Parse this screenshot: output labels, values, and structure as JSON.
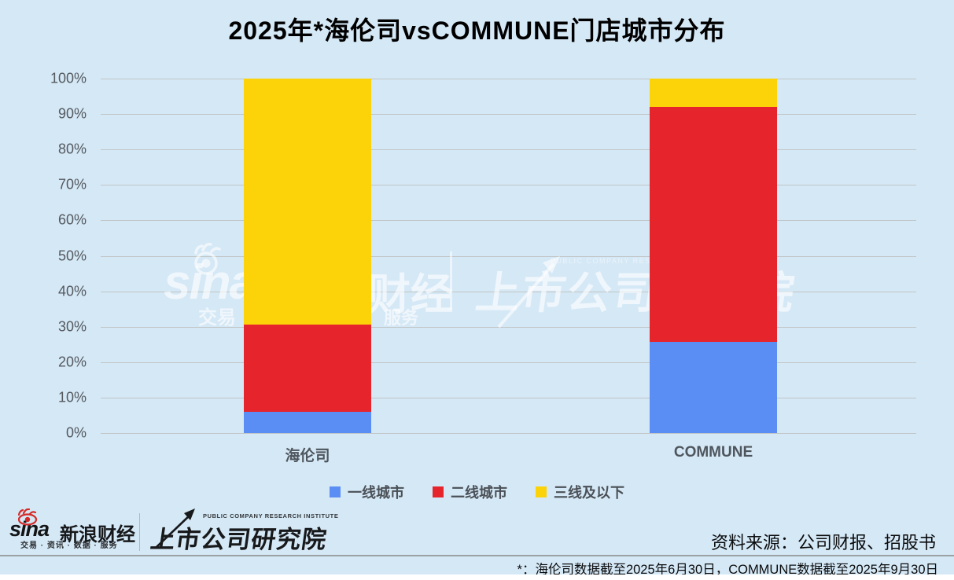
{
  "page": {
    "title": "2025年*海伦司vsCOMMUNE门店城市分布",
    "background_color": "#d5e8f6"
  },
  "chart_data": {
    "type": "bar",
    "stacked": true,
    "unit": "%",
    "title": "2025年*海伦司vsCOMMUNE门店城市分布",
    "categories": [
      "海伦司",
      "COMMUNE"
    ],
    "series": [
      {
        "name": "一线城市",
        "color": "#5b8ef4",
        "values": [
          6,
          25.8
        ]
      },
      {
        "name": "二线城市",
        "color": "#e6242c",
        "values": [
          24.5,
          66.2
        ]
      },
      {
        "name": "三线及以下",
        "color": "#fcd209",
        "values": [
          69.5,
          8
        ]
      }
    ],
    "ylim": [
      0,
      100
    ],
    "yticks": [
      "0%",
      "10%",
      "20%",
      "30%",
      "40%",
      "50%",
      "60%",
      "70%",
      "80%",
      "90%",
      "100%"
    ],
    "grid": true,
    "legend_position": "bottom"
  },
  "watermark": {
    "sina": "sina",
    "caijing": "财经",
    "jiaoyi": "交易",
    "fuwu": "服务",
    "pcri_small": "PUBLIC COMPANY RESEARCH INSTITUTE",
    "pcri": "上市公司研究院"
  },
  "footer": {
    "sina_wordmark": "sina",
    "sina_brand": "新浪财经",
    "sina_tagline": "交易 · 资讯 · 数据 · 服务",
    "pcri_small": "PUBLIC COMPANY RESEARCH INSTITUTE",
    "pcri_name": "上市公司研究院",
    "source": "资料来源：公司财报、招股书",
    "note": "*：海伦司数据截至2025年6月30日，COMMUNE数据截至2025年9月30日"
  }
}
